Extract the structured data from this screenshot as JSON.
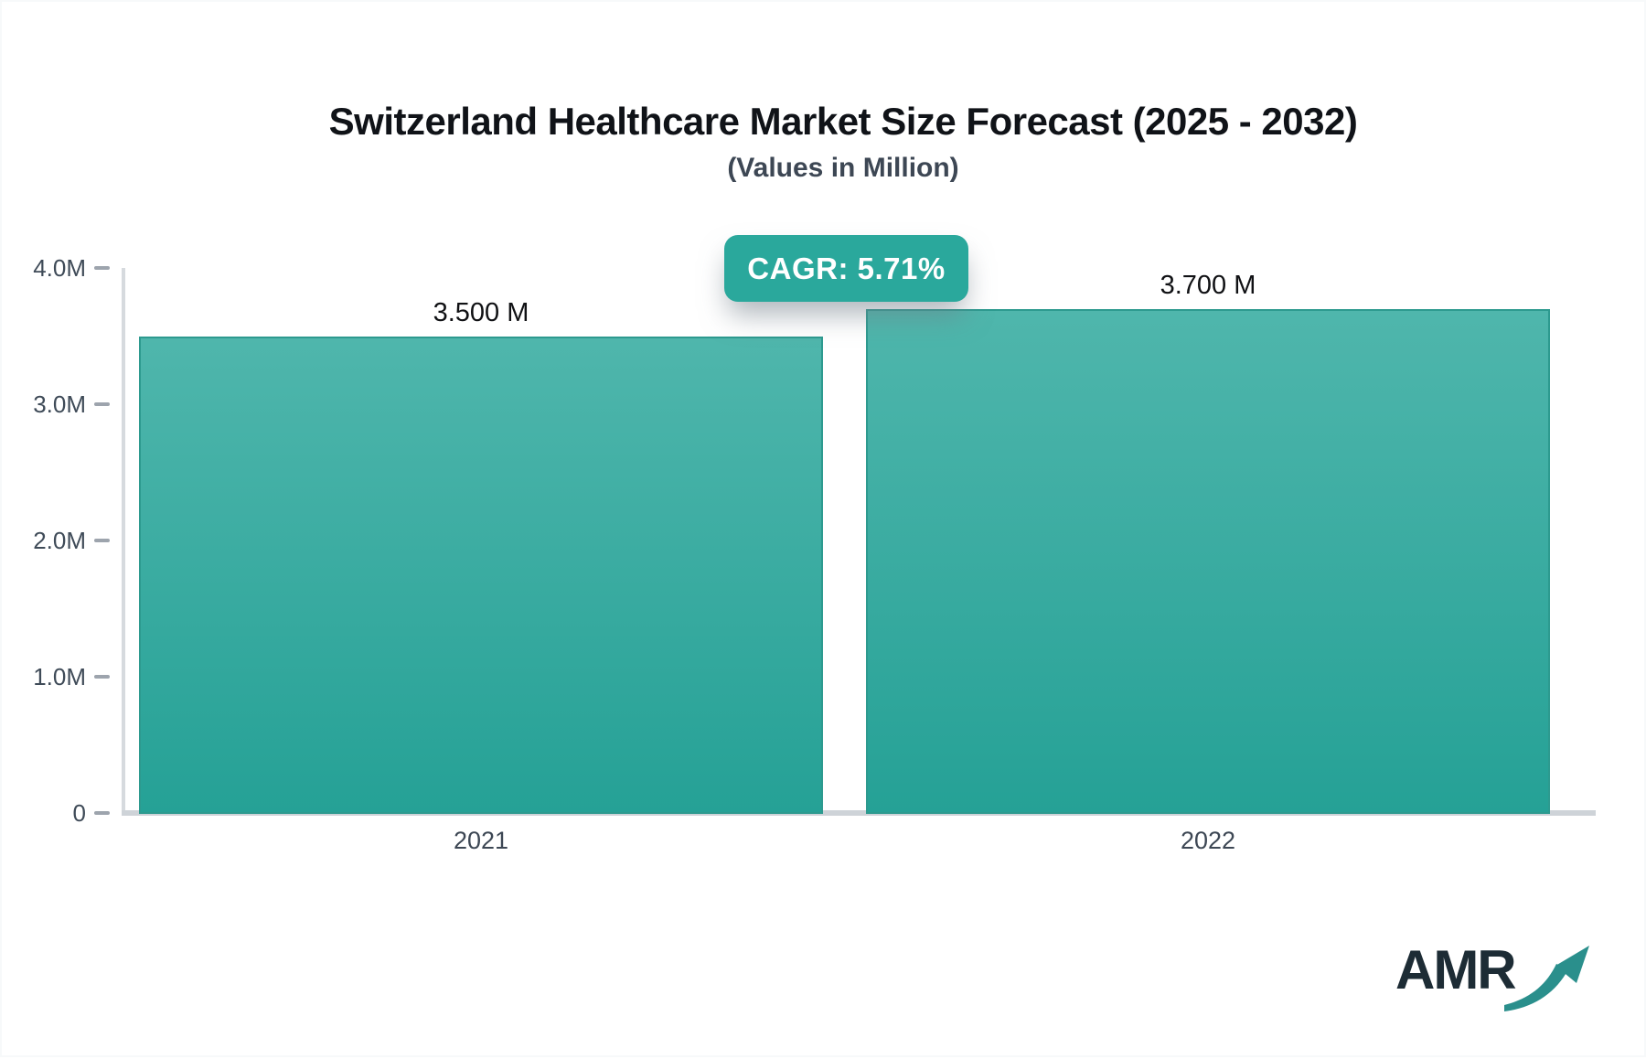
{
  "header": {
    "title": "Switzerland Healthcare Market Size Forecast (2025 - 2032)",
    "subtitle": "(Values in Million)"
  },
  "badge": {
    "label": "CAGR: 5.71%",
    "background": "#2aa89c",
    "text_color": "#ffffff"
  },
  "logo": {
    "text": "AMR",
    "text_color": "#1d2c35",
    "arrow_icon": "growth-arrow-icon",
    "arrow_color": "#2a8f8c"
  },
  "chart_data": {
    "type": "bar",
    "title": "Switzerland Healthcare Market Size Forecast (2025 - 2032)",
    "subtitle": "(Values in Million)",
    "unit": "Million (M)",
    "categories": [
      "2021",
      "2022"
    ],
    "values": [
      3.5,
      3.7
    ],
    "value_labels": [
      "3.500 M",
      "3.700 M"
    ],
    "annotation": "CAGR: 5.71%",
    "xlabel": "",
    "ylabel": "",
    "legend": "none",
    "grid": false,
    "y_axis": {
      "range": [
        0,
        4.0
      ],
      "ticks": [
        {
          "label": "4.0M",
          "value": 4.0
        },
        {
          "label": "3.0M",
          "value": 3.0
        },
        {
          "label": "2.0M",
          "value": 2.0
        },
        {
          "label": "1.0M",
          "value": 1.0
        },
        {
          "label": "0",
          "value": 0
        }
      ]
    },
    "bar_style": {
      "gradient_top": "#4fb6ac",
      "gradient_bottom": "#25a196",
      "border_color": "#2d9a8f"
    },
    "axis_colors": {
      "axis_line": "#d6dade",
      "baseline": "#ced3d8",
      "tick_dash": "#9da4ad",
      "tick_text": "#3f4b58"
    }
  }
}
